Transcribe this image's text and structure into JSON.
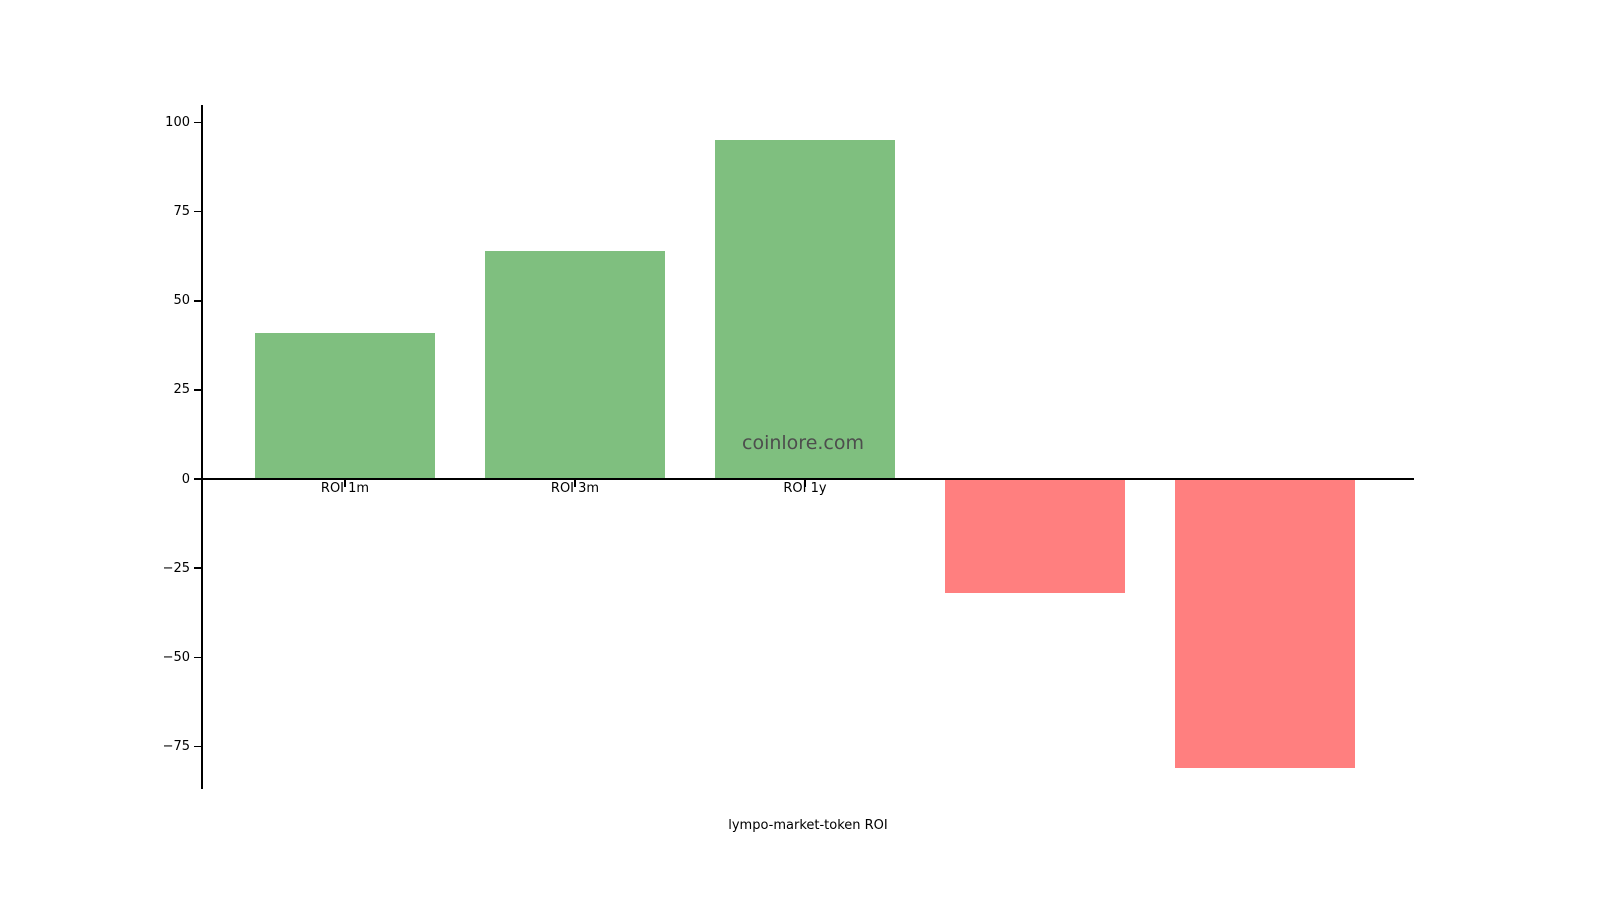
{
  "chart_data": {
    "type": "bar",
    "categories": [
      "ROI 1m",
      "ROI 3m",
      "ROI 1y",
      "",
      ""
    ],
    "values": [
      41,
      64,
      95,
      -32,
      -81
    ],
    "title": "lympo-market-token ROI",
    "xlabel": "lympo-market-token ROI",
    "ylabel": "",
    "yticks": {
      "values": [
        100,
        75,
        50,
        25,
        0,
        -25,
        -50,
        -75
      ],
      "labels": [
        "100",
        "75",
        "50",
        "25",
        "0",
        "−25",
        "−50",
        "−75"
      ]
    },
    "ylim": [
      -87,
      105
    ],
    "grid": false,
    "legend": null,
    "colors": {
      "positive": "#7fbf7f",
      "negative": "#ff7f7f",
      "axis": "#000000"
    }
  },
  "watermark": {
    "text": "coinlore.com",
    "color": "#4d4d4d"
  }
}
